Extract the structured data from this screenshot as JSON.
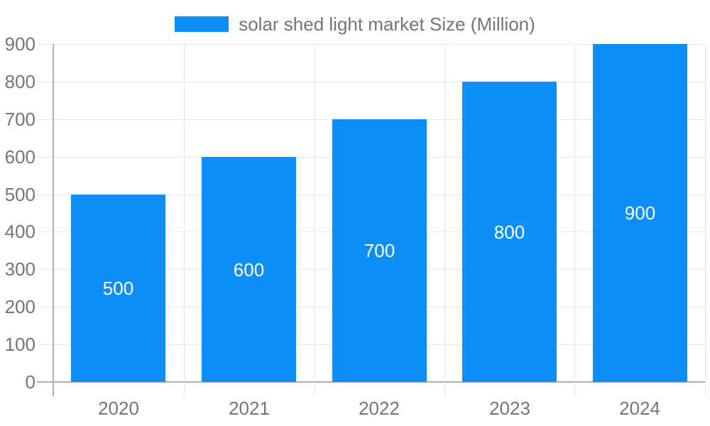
{
  "chart_data": {
    "type": "bar",
    "title": "solar shed light market Size (Million)",
    "categories": [
      "2020",
      "2021",
      "2022",
      "2023",
      "2024"
    ],
    "series": [
      {
        "name": "solar shed light market Size (Million)",
        "values": [
          500,
          600,
          700,
          800,
          900
        ]
      }
    ],
    "value_labels": [
      "500",
      "600",
      "700",
      "800",
      "900"
    ],
    "xlabel": "",
    "ylabel": "",
    "ylim": [
      0,
      900
    ],
    "ytick_step": 100,
    "yticks": [
      "0",
      "100",
      "200",
      "300",
      "400",
      "500",
      "600",
      "700",
      "800",
      "900"
    ],
    "grid": true,
    "legend_position": "top-center",
    "colors": {
      "bar": "#0e8ff7",
      "grid_line": "#e6e6e6",
      "axis_line": "#b0b0b0",
      "tick_label": "#757575",
      "title": "#757575",
      "value_label": "#ffffff",
      "background": "#ffffff"
    }
  },
  "legend": {
    "label": "solar shed light market Size (Million)",
    "swatch_color": "#0e8ff7"
  }
}
